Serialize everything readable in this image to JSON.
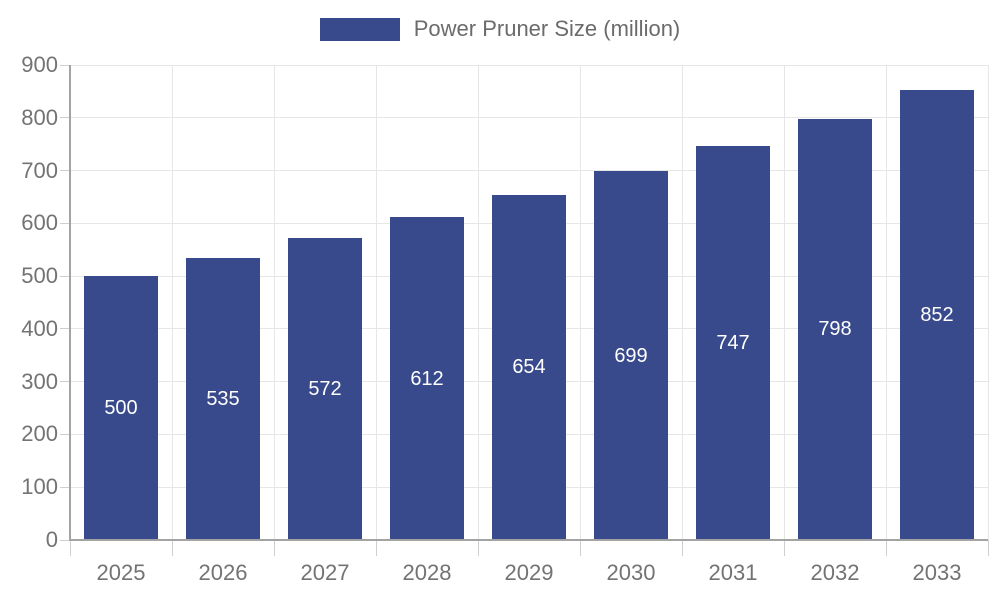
{
  "legend": {
    "label": "Power Pruner Size (million)"
  },
  "chart_data": {
    "type": "bar",
    "title": "",
    "categories": [
      "2025",
      "2026",
      "2027",
      "2028",
      "2029",
      "2030",
      "2031",
      "2032",
      "2033"
    ],
    "values": [
      500,
      535,
      572,
      612,
      654,
      699,
      747,
      798,
      852
    ],
    "series_name": "Power Pruner Size (million)",
    "xlabel": "",
    "ylabel": "",
    "ylim": [
      0,
      900
    ],
    "ytick_step": 100,
    "yticks": [
      0,
      100,
      200,
      300,
      400,
      500,
      600,
      700,
      800,
      900
    ],
    "grid": true,
    "legend_position": "top",
    "bar_label_position": "inside-center"
  },
  "colors": {
    "bar": "#384a8c",
    "bar_label": "#ffffff",
    "grid": "#e6e6e6",
    "axis_line": "#a3a3a3",
    "tick": "#cfcfcf",
    "axis_text": "#737373",
    "legend_text": "#6b6b6b",
    "background": "#ffffff"
  }
}
